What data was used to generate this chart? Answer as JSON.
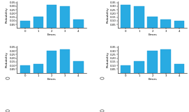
{
  "x_values": [
    0,
    1,
    2,
    3,
    4
  ],
  "distributions": [
    [
      0.1,
      0.16,
      0.32,
      0.3,
      0.12
    ],
    [
      0.32,
      0.3,
      0.16,
      0.12,
      0.1
    ],
    [
      0.1,
      0.12,
      0.3,
      0.32,
      0.16
    ],
    [
      0.1,
      0.16,
      0.3,
      0.32,
      0.12
    ]
  ],
  "bar_color": "#29ABE2",
  "bar_edge_color": "#1A9AD8",
  "ylabel": "Probability",
  "xlabel": "Errors",
  "ylim": [
    0,
    0.37
  ],
  "yticks": [
    0.05,
    0.1,
    0.15,
    0.2,
    0.25,
    0.3,
    0.35
  ],
  "ytick_labels": [
    "0.05",
    "0.10",
    "0.15",
    "0.20",
    "0.25",
    "0.30",
    "0.35"
  ],
  "label_fontsize": 3.2,
  "tick_fontsize": 2.8
}
